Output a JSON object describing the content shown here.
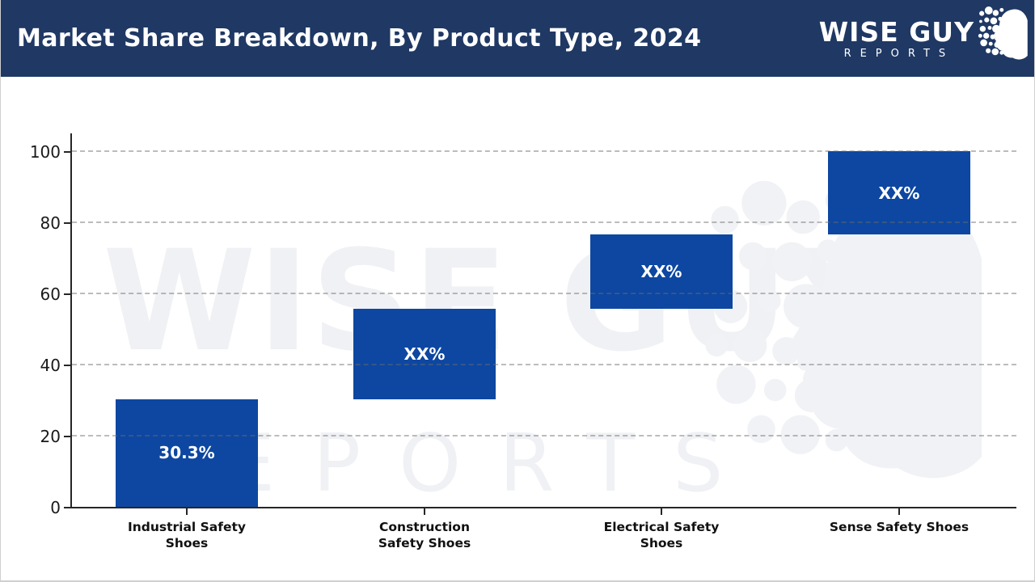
{
  "header": {
    "title": "Market Share Breakdown, By Product Type, 2024",
    "logo": {
      "line1": "WISE GUY",
      "line2": "REPORTS"
    }
  },
  "watermark": {
    "line1": "WISE GUY",
    "line2": "REPORTS"
  },
  "chart_data": {
    "type": "bar",
    "subtype": "waterfall",
    "title": "Market Share Breakdown, By Product Type, 2024",
    "xlabel": "",
    "ylabel": "",
    "ylim": [
      0,
      105
    ],
    "y_ticks": [
      0,
      20,
      40,
      60,
      80,
      100
    ],
    "grid": "horizontal-dashed",
    "bar_color": "#0d47a1",
    "label_color": "#ffffff",
    "categories": [
      {
        "name": "Industrial Safety Shoes",
        "lines": [
          "Industrial Safety",
          "Shoes"
        ]
      },
      {
        "name": "Construction Safety Shoes",
        "lines": [
          "Construction",
          "Safety Shoes"
        ]
      },
      {
        "name": "Electrical Safety Shoes",
        "lines": [
          "Electrical Safety",
          "Shoes"
        ]
      },
      {
        "name": "Sense Safety Shoes",
        "lines": [
          "Sense Safety Shoes"
        ]
      }
    ],
    "segments": [
      {
        "category": "Industrial Safety Shoes",
        "start": 0,
        "end": 30.3,
        "value": 30.3,
        "label": "30.3%"
      },
      {
        "category": "Construction Safety Shoes",
        "start": 30.3,
        "end": 55.6,
        "value": 25.3,
        "label": "XX%"
      },
      {
        "category": "Electrical Safety Shoes",
        "start": 55.6,
        "end": 76.5,
        "value": 20.9,
        "label": "XX%"
      },
      {
        "category": "Sense Safety Shoes",
        "start": 76.5,
        "end": 100,
        "value": 23.5,
        "label": "XX%"
      }
    ]
  }
}
